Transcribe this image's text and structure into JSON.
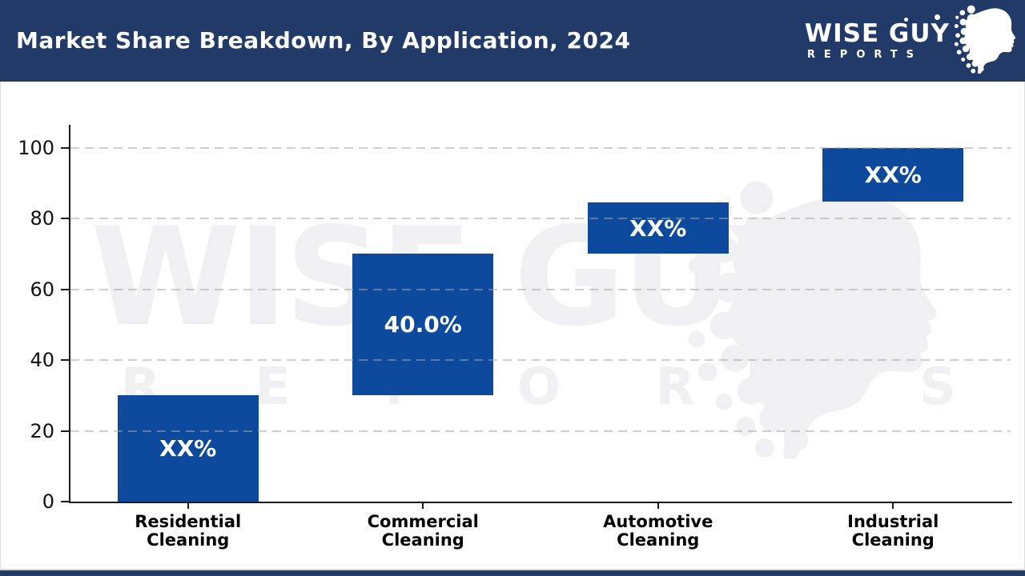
{
  "header": {
    "title": "Market Share Breakdown, By Application, 2024",
    "brand": {
      "name": "WISE GUY",
      "subtitle": "REPORTS"
    }
  },
  "watermark": {
    "name": "WISE GUY",
    "subtitle": "R E P O R T S"
  },
  "colors": {
    "header_bg": "#213a67",
    "footer_bg": "#213a67",
    "bar": "#0d4a9e",
    "bar_label": "#ffffff",
    "watermark": "#f0f0f2",
    "grid": "#aaaaaa",
    "axis": "#1a1a1a"
  },
  "chart_data": {
    "type": "bar",
    "subtype": "waterfall-segmented",
    "title": "Market Share Breakdown, By Application, 2024",
    "categories": [
      {
        "line1": "Residential",
        "line2": "Cleaning"
      },
      {
        "line1": "Commercial",
        "line2": "Cleaning"
      },
      {
        "line1": "Automotive",
        "line2": "Cleaning"
      },
      {
        "line1": "Industrial",
        "line2": "Cleaning"
      }
    ],
    "segments": [
      {
        "category": "Residential Cleaning",
        "start": 0,
        "end": 30,
        "value": 30,
        "value_label": "XX%"
      },
      {
        "category": "Commercial Cleaning",
        "start": 30,
        "end": 70,
        "value": 40,
        "value_label": "40.0%"
      },
      {
        "category": "Automotive Cleaning",
        "start": 70,
        "end": 84.5,
        "value": 14.5,
        "value_label": "XX%"
      },
      {
        "category": "Industrial Cleaning",
        "start": 84.7,
        "end": 100,
        "value": 15.3,
        "value_label": "XX%"
      }
    ],
    "xlabel": "",
    "ylabel": "",
    "ylim": [
      0,
      100
    ],
    "yticks": [
      0,
      20,
      40,
      60,
      80,
      100
    ],
    "grid": "horizontal-dashed",
    "legend": "none"
  }
}
